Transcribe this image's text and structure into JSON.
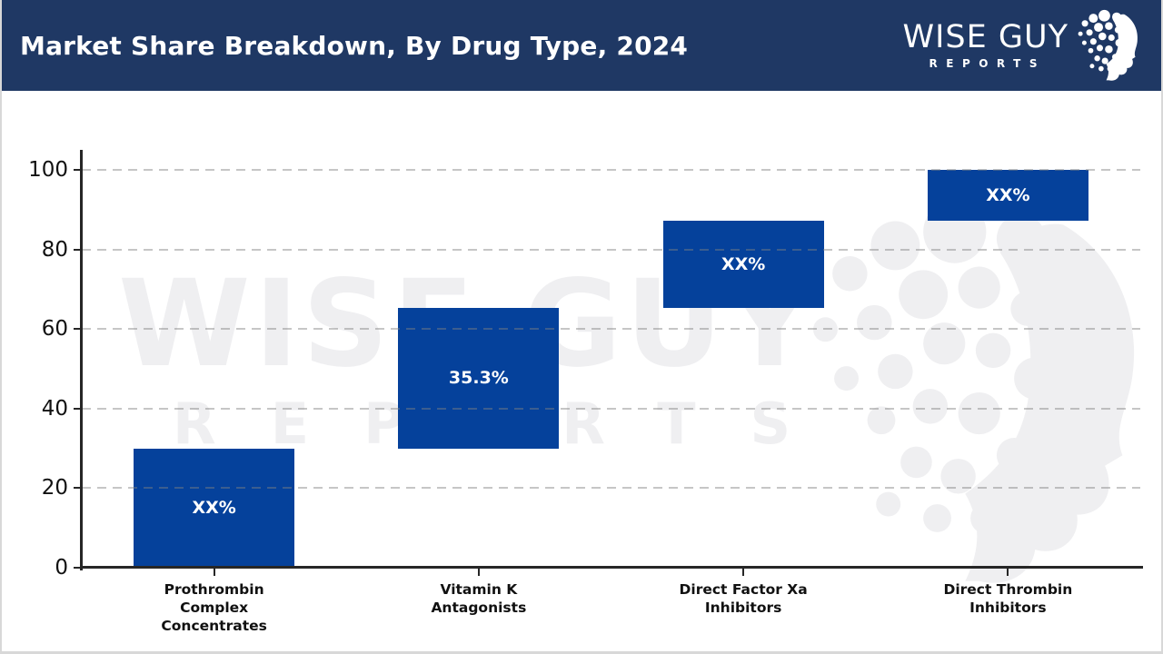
{
  "header": {
    "title": "Market Share Breakdown, By Drug Type, 2024",
    "brand_name": "WISE GUY",
    "brand_sub": "REPORTS",
    "bg_color": "#1f3864"
  },
  "watermark": {
    "line1": "WISE GUY",
    "line2": "REPORTS"
  },
  "chart_data": {
    "type": "bar",
    "variant": "waterfall",
    "title": "Market Share Breakdown, By Drug Type, 2024",
    "categories": [
      "Prothrombin Complex Concentrates",
      "Vitamin K Antagonists",
      "Direct Factor Xa Inhibitors",
      "Direct Thrombin Inhibitors"
    ],
    "category_label_lines": [
      [
        "Prothrombin",
        "Complex",
        "Concentrates"
      ],
      [
        "Vitamin K",
        "Antagonists"
      ],
      [
        "Direct Factor Xa",
        "Inhibitors"
      ],
      [
        "Direct Thrombin",
        "Inhibitors"
      ]
    ],
    "segments": [
      {
        "category": "Prothrombin Complex Concentrates",
        "start": 0,
        "end": 30,
        "label": "XX%"
      },
      {
        "category": "Vitamin K Antagonists",
        "start": 30,
        "end": 65.3,
        "label": "35.3%",
        "value": 35.3
      },
      {
        "category": "Direct Factor Xa Inhibitors",
        "start": 65.3,
        "end": 87.3,
        "label": "XX%"
      },
      {
        "category": "Direct Thrombin Inhibitors",
        "start": 87.3,
        "end": 100,
        "label": "XX%"
      }
    ],
    "xlabel": "",
    "ylabel": "",
    "ylim": [
      0,
      100
    ],
    "yticks": [
      0,
      20,
      40,
      60,
      80,
      100
    ],
    "grid": "horizontal-dashed",
    "legend": "none",
    "bar_color": "#05419b",
    "bar_label_color": "#ffffff",
    "axis_color": "#262626",
    "grid_color": "rgba(128,128,128,0.45)"
  }
}
